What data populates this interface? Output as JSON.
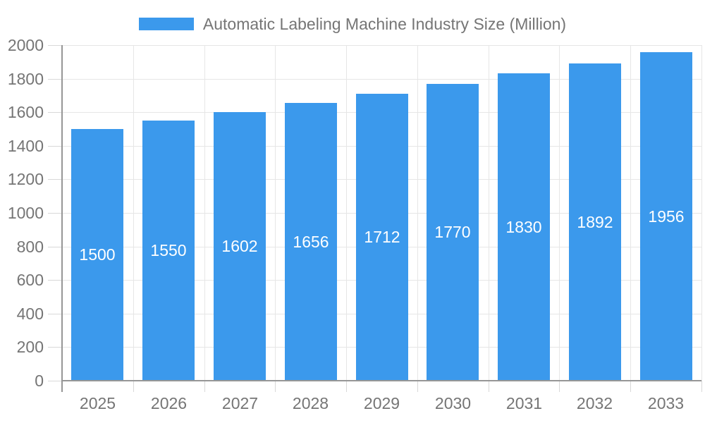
{
  "chart_data": {
    "type": "bar",
    "title": "Automatic Labeling Machine Industry Size (Million)",
    "categories": [
      "2025",
      "2026",
      "2027",
      "2028",
      "2029",
      "2030",
      "2031",
      "2032",
      "2033"
    ],
    "values": [
      1500,
      1550,
      1602,
      1656,
      1712,
      1770,
      1830,
      1892,
      1956
    ],
    "xlabel": "",
    "ylabel": "",
    "ylim": [
      0,
      2000
    ],
    "ytick_step": 200,
    "ytick_labels": [
      "0",
      "200",
      "400",
      "600",
      "800",
      "1000",
      "1200",
      "1400",
      "1600",
      "1800",
      "2000"
    ],
    "grid": true,
    "legend_position": "top",
    "value_labels": "inside-center",
    "colors": {
      "bar": "#3B99EC",
      "label_text": "#757575",
      "value_text": "#FFFFFF",
      "gridline": "#E6E6E6",
      "tick": "#D8D8D8",
      "axis": "#969696",
      "background": "#FFFFFF"
    }
  }
}
